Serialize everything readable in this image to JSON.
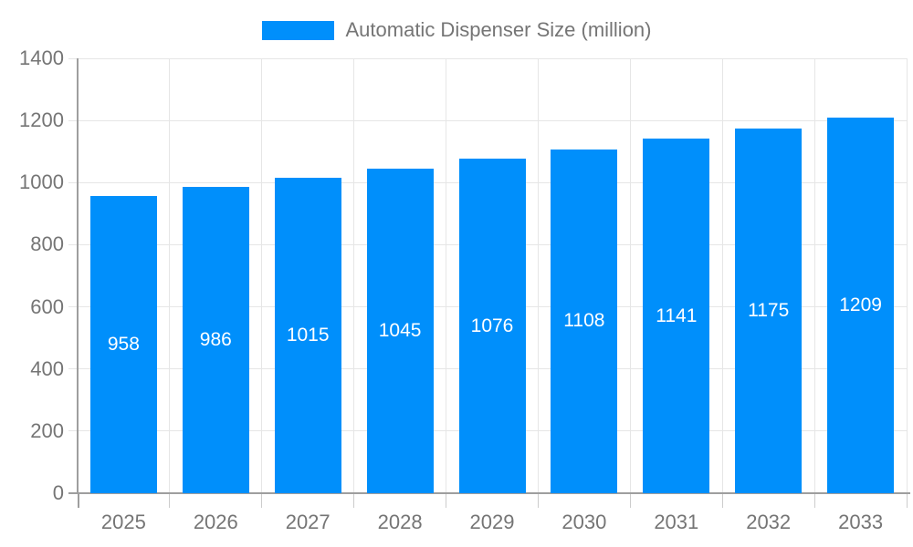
{
  "legend": {
    "label": "Automatic Dispenser Size (million)"
  },
  "chart_data": {
    "type": "bar",
    "title": "",
    "series_name": "Automatic Dispenser Size (million)",
    "categories": [
      "2025",
      "2026",
      "2027",
      "2028",
      "2029",
      "2030",
      "2031",
      "2032",
      "2033"
    ],
    "values": [
      958,
      986,
      1015,
      1045,
      1076,
      1108,
      1141,
      1175,
      1209
    ],
    "xlabel": "",
    "ylabel": "",
    "ylim": [
      0,
      1400
    ],
    "ytick_step": 200,
    "ytick_labels": [
      "0",
      "200",
      "400",
      "600",
      "800",
      "1000",
      "1200",
      "1400"
    ],
    "grid": true,
    "legend_position": "top",
    "value_labels_position": "inside-center",
    "colors": {
      "bar": "#008FFB",
      "value_label": "#ffffff",
      "axis_text": "#757575",
      "gridline": "#e6e6e6",
      "axis_line": "#9e9e9e",
      "tick": "#cccccc",
      "background": "#ffffff"
    }
  }
}
